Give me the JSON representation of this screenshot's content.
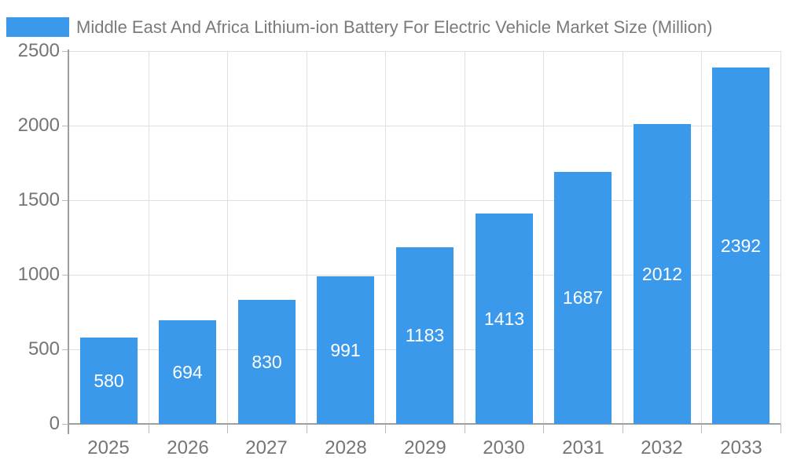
{
  "header": {
    "legend_label": "Middle East And Africa Lithium-ion Battery For Electric Vehicle Market Size (Million)"
  },
  "chart_data": {
    "type": "bar",
    "title": "Middle East And Africa Lithium-ion Battery For Electric Vehicle Market Size (Million)",
    "series_name": "Middle East And Africa Lithium-ion Battery For Electric Vehicle Market Size (Million)",
    "categories": [
      "2025",
      "2026",
      "2027",
      "2028",
      "2029",
      "2030",
      "2031",
      "2032",
      "2033"
    ],
    "values": [
      580,
      694,
      830,
      991,
      1183,
      1413,
      1687,
      2012,
      2392
    ],
    "xlabel": "",
    "ylabel": "",
    "ylim": [
      0,
      2500
    ],
    "yticks": [
      0,
      500,
      1000,
      1500,
      2000,
      2500
    ],
    "grid": true,
    "legend_position": "top-left",
    "value_labels": "inside-center-white",
    "colors": {
      "bar": "#3b99ec",
      "gridline": "#e0e0e0",
      "axis_line": "#9e9e9e",
      "tick": "#bbbbbb",
      "axis_text": "#757575",
      "title_text": "#7a7a7a",
      "value_text": "#ffffff",
      "background": "#ffffff"
    }
  }
}
